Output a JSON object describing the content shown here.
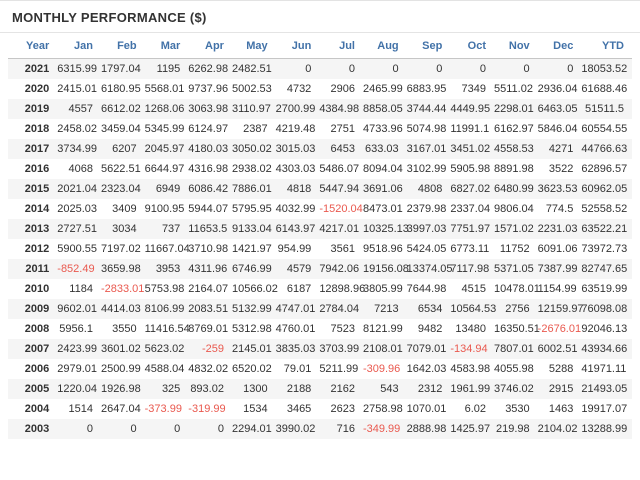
{
  "title": "MONTHLY PERFORMANCE ($)",
  "colors": {
    "header_text": "#4272a8",
    "negative_value": "#e9594f",
    "row_stripe": "#f5f5f5",
    "body_text": "#333333",
    "title_text": "#333333",
    "header_underline": "#c6c6c6",
    "title_underline": "#e4e4e4"
  },
  "table": {
    "columns": [
      "Year",
      "Jan",
      "Feb",
      "Mar",
      "Apr",
      "May",
      "Jun",
      "Jul",
      "Aug",
      "Sep",
      "Oct",
      "Nov",
      "Dec",
      "YTD"
    ],
    "rows": [
      {
        "year": "2021",
        "values": [
          "6315.99",
          "1797.04",
          "1195",
          "6262.98",
          "2482.51",
          "0",
          "0",
          "0",
          "0",
          "0",
          "0",
          "0",
          "18053.52"
        ]
      },
      {
        "year": "2020",
        "values": [
          "2415.01",
          "6180.95",
          "5568.01",
          "9737.96",
          "5002.53",
          "4732",
          "2906",
          "2465.99",
          "6883.95",
          "7349",
          "5511.02",
          "2936.04",
          "61688.46"
        ]
      },
      {
        "year": "2019",
        "values": [
          "4557",
          "6612.02",
          "1268.06",
          "3063.98",
          "3110.97",
          "2700.99",
          "4384.98",
          "8858.05",
          "3744.44",
          "4449.95",
          "2298.01",
          "6463.05",
          "51511.5"
        ]
      },
      {
        "year": "2018",
        "values": [
          "2458.02",
          "3459.04",
          "5345.99",
          "6124.97",
          "2387",
          "4219.48",
          "2751",
          "4733.96",
          "5074.98",
          "11991.1",
          "6162.97",
          "5846.04",
          "60554.55"
        ]
      },
      {
        "year": "2017",
        "values": [
          "3734.99",
          "6207",
          "2045.97",
          "4180.03",
          "3050.02",
          "3015.03",
          "6453",
          "633.03",
          "3167.01",
          "3451.02",
          "4558.53",
          "4271",
          "44766.63"
        ]
      },
      {
        "year": "2016",
        "values": [
          "4068",
          "5622.51",
          "6644.97",
          "4316.98",
          "2938.02",
          "4303.03",
          "5486.07",
          "8094.04",
          "3102.99",
          "5905.98",
          "8891.98",
          "3522",
          "62896.57"
        ]
      },
      {
        "year": "2015",
        "values": [
          "2021.04",
          "2323.04",
          "6949",
          "6086.42",
          "7886.01",
          "4818",
          "5447.94",
          "3691.06",
          "4808",
          "6827.02",
          "6480.99",
          "3623.53",
          "60962.05"
        ]
      },
      {
        "year": "2014",
        "values": [
          "2025.03",
          "3409",
          "9100.95",
          "5944.07",
          "5795.95",
          "4032.99",
          "-1520.04",
          "8473.01",
          "2379.98",
          "2337.04",
          "9806.04",
          "774.5",
          "52558.52"
        ]
      },
      {
        "year": "2013",
        "values": [
          "2727.51",
          "3034",
          "737",
          "11653.5",
          "9133.04",
          "6143.97",
          "4217.01",
          "10325.13",
          "3997.03",
          "7751.97",
          "1571.02",
          "2231.03",
          "63522.21"
        ]
      },
      {
        "year": "2012",
        "values": [
          "5900.55",
          "7197.02",
          "11667.04",
          "3710.98",
          "1421.97",
          "954.99",
          "3561",
          "9518.96",
          "5424.05",
          "6773.11",
          "11752",
          "6091.06",
          "73972.73"
        ]
      },
      {
        "year": "2011",
        "values": [
          "-852.49",
          "3659.98",
          "3953",
          "4311.96",
          "6746.99",
          "4579",
          "7942.06",
          "19156.08",
          "13374.05",
          "7117.98",
          "5371.05",
          "7387.99",
          "82747.65"
        ]
      },
      {
        "year": "2010",
        "values": [
          "1184",
          "-2833.01",
          "5753.98",
          "2164.07",
          "10566.02",
          "6187",
          "12898.96",
          "3805.99",
          "7644.98",
          "4515",
          "10478.01",
          "1154.99",
          "63519.99"
        ]
      },
      {
        "year": "2009",
        "values": [
          "9602.01",
          "4414.03",
          "8106.99",
          "2083.51",
          "5132.99",
          "4747.01",
          "2784.04",
          "7213",
          "6534",
          "10564.53",
          "2756",
          "12159.97",
          "76098.08"
        ]
      },
      {
        "year": "2008",
        "values": [
          "5956.1",
          "3550",
          "11416.54",
          "8769.01",
          "5312.98",
          "4760.01",
          "7523",
          "8121.99",
          "9482",
          "13480",
          "16350.51",
          "-2676.01",
          "92046.13"
        ]
      },
      {
        "year": "2007",
        "values": [
          "2423.99",
          "3601.02",
          "5623.02",
          "-259",
          "2145.01",
          "3835.03",
          "3703.99",
          "2108.01",
          "7079.01",
          "-134.94",
          "7807.01",
          "6002.51",
          "43934.66"
        ]
      },
      {
        "year": "2006",
        "values": [
          "2979.01",
          "2500.99",
          "4588.04",
          "4832.02",
          "6520.02",
          "79.01",
          "5211.99",
          "-309.96",
          "1642.03",
          "4583.98",
          "4055.98",
          "5288",
          "41971.11"
        ]
      },
      {
        "year": "2005",
        "values": [
          "1220.04",
          "1926.98",
          "325",
          "893.02",
          "1300",
          "2188",
          "2162",
          "543",
          "2312",
          "1961.99",
          "3746.02",
          "2915",
          "21493.05"
        ]
      },
      {
        "year": "2004",
        "values": [
          "1514",
          "2647.04",
          "-373.99",
          "-319.99",
          "1534",
          "3465",
          "2623",
          "2758.98",
          "1070.01",
          "6.02",
          "3530",
          "1463",
          "19917.07"
        ]
      },
      {
        "year": "2003",
        "values": [
          "0",
          "0",
          "0",
          "0",
          "2294.01",
          "3990.02",
          "716",
          "-349.99",
          "2888.98",
          "1425.97",
          "219.98",
          "2104.02",
          "13288.99"
        ]
      }
    ]
  }
}
